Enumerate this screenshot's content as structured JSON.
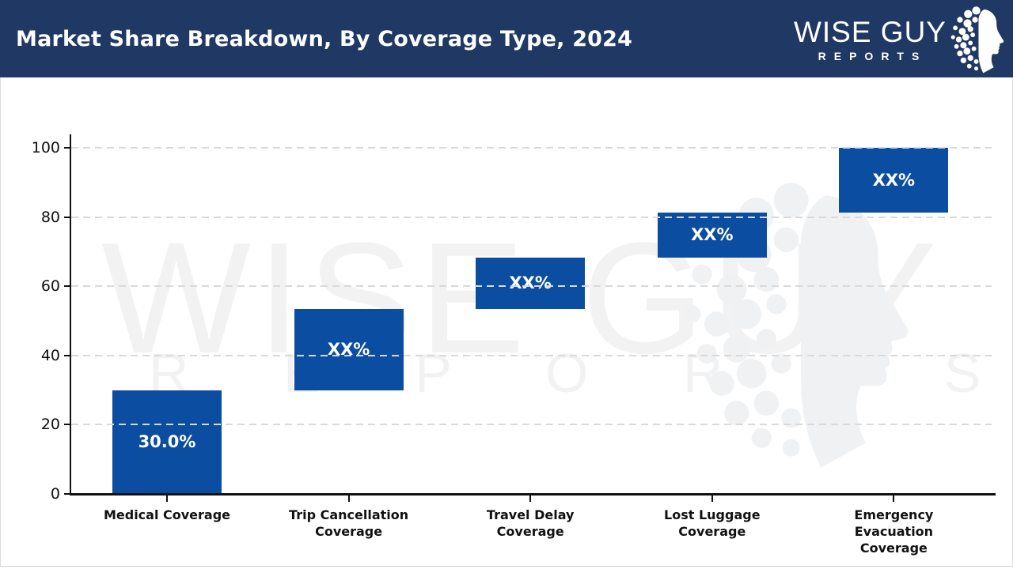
{
  "header": {
    "title": "Market Share Breakdown, By Coverage Type, 2024",
    "logo": {
      "primary": "WISE GUY",
      "secondary": "REPORTS"
    }
  },
  "watermark": {
    "primary": "WISE GUY",
    "secondary": "R E P O R T S"
  },
  "chart_data": {
    "type": "bar",
    "subtype": "waterfall",
    "title": "Market Share Breakdown, By Coverage Type, 2024",
    "categories": [
      "Medical Coverage",
      "Trip Cancellation Coverage",
      "Travel Delay Coverage",
      "Lost Luggage Coverage",
      "Emergency Evacuation Coverage"
    ],
    "category_label_lines": [
      [
        "Medical Coverage"
      ],
      [
        "Trip Cancellation",
        "Coverage"
      ],
      [
        "Travel Delay",
        "Coverage"
      ],
      [
        "Lost Luggage",
        "Coverage"
      ],
      [
        "Emergency",
        "Evacuation",
        "Coverage"
      ]
    ],
    "segments": [
      {
        "category": "Medical Coverage",
        "start": 0,
        "end": 30,
        "value": 30.0,
        "label": "30.0%"
      },
      {
        "category": "Trip Cancellation Coverage",
        "start": 30,
        "end": 53.5,
        "value": 23.5,
        "label": "XX%"
      },
      {
        "category": "Travel Delay Coverage",
        "start": 53.5,
        "end": 68.3,
        "value": 14.8,
        "label": "XX%"
      },
      {
        "category": "Lost Luggage Coverage",
        "start": 68.3,
        "end": 81.3,
        "value": 13.0,
        "label": "XX%"
      },
      {
        "category": "Emergency Evacuation Coverage",
        "start": 81.3,
        "end": 100,
        "value": 18.7,
        "label": "XX%"
      }
    ],
    "y_axis": {
      "ticks": [
        0,
        20,
        40,
        60,
        80,
        100
      ],
      "range": [
        0,
        104
      ]
    },
    "grid": {
      "horizontal": true,
      "style": "dashed"
    },
    "legend": false,
    "colors": {
      "bar": "#0b4da1",
      "header_bg": "#1f3864",
      "grid": "#d9d9d9",
      "watermark": "#f2f2f3",
      "bar_label": "#ffffff",
      "axis": "#111111"
    }
  }
}
